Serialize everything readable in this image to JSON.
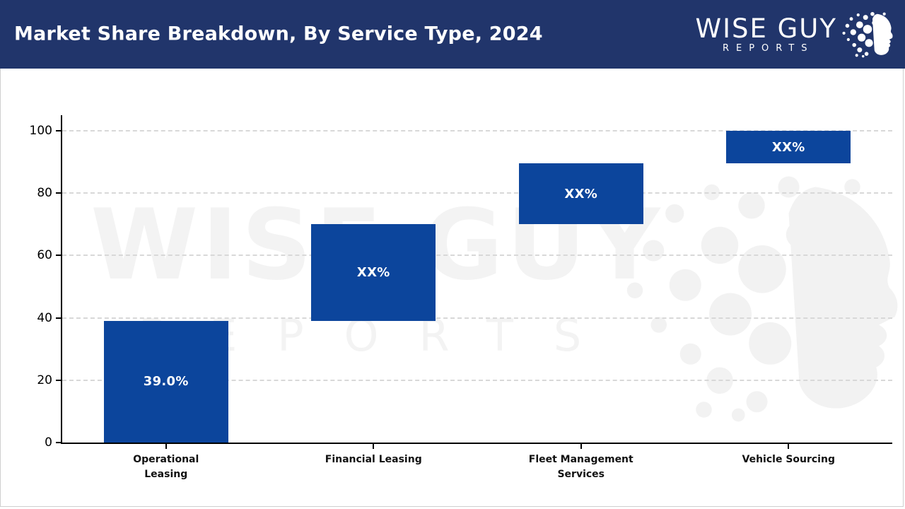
{
  "header": {
    "title": "Market Share Breakdown, By Service Type, 2024",
    "logo": {
      "name": "WISE GUY",
      "sub": "REPORTS"
    }
  },
  "watermark": {
    "line1": "WISE GUY",
    "line2": "REPORTS"
  },
  "chart_data": {
    "type": "bar",
    "subtype": "waterfall",
    "title": "Market Share Breakdown, By Service Type, 2024",
    "categories": [
      {
        "name": "Operational Leasing",
        "lines": [
          "Operational",
          "Leasing"
        ]
      },
      {
        "name": "Financial Leasing",
        "lines": [
          "Financial Leasing"
        ]
      },
      {
        "name": "Fleet Management Services",
        "lines": [
          "Fleet Management",
          "Services"
        ]
      },
      {
        "name": "Vehicle Sourcing",
        "lines": [
          "Vehicle Sourcing"
        ]
      }
    ],
    "segments": [
      {
        "category": "Operational Leasing",
        "start": 0,
        "end": 39,
        "label": "39.0%"
      },
      {
        "category": "Financial Leasing",
        "start": 39,
        "end": 70,
        "label": "XX%"
      },
      {
        "category": "Fleet Management Services",
        "start": 70,
        "end": 89.5,
        "label": "XX%"
      },
      {
        "category": "Vehicle Sourcing",
        "start": 89.5,
        "end": 100,
        "label": "XX%"
      }
    ],
    "yticks": [
      0,
      20,
      40,
      60,
      80,
      100
    ],
    "ylim": [
      0,
      105
    ],
    "xlabel": "",
    "ylabel": "",
    "grid": {
      "axis": "y",
      "style": "dashed"
    },
    "legend": "none"
  },
  "colors": {
    "header_bg": "#21356B",
    "bar": "#0C459C",
    "bar_label": "#FFFFFF",
    "grid": "#D8D8D8",
    "axis": "#000000",
    "watermark": "#F3F3F3",
    "frame_border": "#CFCFCF"
  }
}
